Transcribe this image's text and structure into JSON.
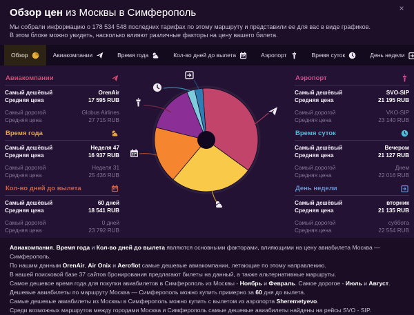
{
  "header": {
    "title_bold": "Обзор цен",
    "title_rest": " из Москвы в Симферополь",
    "subtitle_line1": "Мы собрали информацию о 178 534 548 последних тарифах по этому маршруту и представили ее для вас в виде графиков.",
    "subtitle_line2": "В этом блоке можно увидеть, насколько влияют различные факторы на цену вашего билета.",
    "close_label": "×"
  },
  "colors": {
    "background": "#1d0f28",
    "content_background": "#231233",
    "active_tab_accent": "#e8b13c"
  },
  "tabs": [
    {
      "key": "overview",
      "label": "Обзор",
      "icon": "coin",
      "icon_color": "#e8b13c",
      "active": true
    },
    {
      "key": "airlines",
      "label": "Авиакомпании",
      "icon": "plane",
      "icon_color": "#efeaf2",
      "active": false
    },
    {
      "key": "seasons",
      "label": "Время года",
      "icon": "season",
      "icon_color": "#efeaf2",
      "active": false
    },
    {
      "key": "days-before",
      "label": "Кол-во дней до вылета",
      "icon": "calendar",
      "icon_color": "#efeaf2",
      "active": false
    },
    {
      "key": "airport",
      "label": "Аэропорт",
      "icon": "tower",
      "icon_color": "#efeaf2",
      "active": false
    },
    {
      "key": "time-of-day",
      "label": "Время суток",
      "icon": "clock",
      "icon_color": "#efeaf2",
      "active": false
    },
    {
      "key": "weekday",
      "label": "День недели",
      "icon": "week",
      "icon_color": "#efeaf2",
      "active": false
    }
  ],
  "sections": {
    "left": [
      {
        "key": "airlines",
        "title": "Авиакомпании",
        "color": "#d44a72",
        "icon": "plane",
        "rows": [
          {
            "label": "Самый дешёвый",
            "value": "OrenAir",
            "dim": false
          },
          {
            "label": "Средняя цена",
            "value": "17 595 RUB",
            "dim": false
          },
          {
            "label": "Самый дорогой",
            "value": "Globus Airlines",
            "dim": true
          },
          {
            "label": "Средняя цена",
            "value": "27 715 RUB",
            "dim": true
          }
        ]
      },
      {
        "key": "seasons",
        "title": "Время года",
        "color": "#e8a33d",
        "icon": "season",
        "rows": [
          {
            "label": "Самый дешёвый",
            "value": "Неделя 47",
            "dim": false
          },
          {
            "label": "Средняя цена",
            "value": "16 937 RUB",
            "dim": false
          },
          {
            "label": "Самый дорогой",
            "value": "Неделя 31",
            "dim": true
          },
          {
            "label": "Средняя цена",
            "value": "25 436 RUB",
            "dim": true
          }
        ]
      },
      {
        "key": "days-before",
        "title": "Кол-во дней до вылета",
        "color": "#d95b37",
        "icon": "calendar",
        "rows": [
          {
            "label": "Самый дешёвый",
            "value": "60 дней",
            "dim": false
          },
          {
            "label": "Средняя цена",
            "value": "18 541 RUB",
            "dim": false
          },
          {
            "label": "Самый дорогой",
            "value": "0 дней",
            "dim": true
          },
          {
            "label": "Средняя цена",
            "value": "23 792 RUB",
            "dim": true
          }
        ]
      }
    ],
    "right": [
      {
        "key": "airport",
        "title": "Аэропорт",
        "color": "#d44a8c",
        "icon": "tower",
        "rows": [
          {
            "label": "Самый дешёвый",
            "value": "SVO-SIP",
            "dim": false
          },
          {
            "label": "Средняя цена",
            "value": "21 195 RUB",
            "dim": false
          },
          {
            "label": "Самый дорогой",
            "value": "VKO-SIP",
            "dim": true
          },
          {
            "label": "Средняя цена",
            "value": "23 140 RUB",
            "dim": true
          }
        ]
      },
      {
        "key": "time-of-day",
        "title": "Время суток",
        "color": "#4bbdd8",
        "icon": "clock",
        "rows": [
          {
            "label": "Самый дешёвый",
            "value": "Вечером",
            "dim": false
          },
          {
            "label": "Средняя цена",
            "value": "21 127 RUB",
            "dim": false
          },
          {
            "label": "Самый дорогой",
            "value": "Днем",
            "dim": true
          },
          {
            "label": "Средняя цена",
            "value": "22 016 RUB",
            "dim": true
          }
        ]
      },
      {
        "key": "weekday",
        "title": "День недели",
        "color": "#5f93d8",
        "icon": "week",
        "rows": [
          {
            "label": "Самый дешёвый",
            "value": "вторник",
            "dim": false
          },
          {
            "label": "Средняя цена",
            "value": "21 135 RUB",
            "dim": false
          },
          {
            "label": "Самый дорогой",
            "value": "суббота",
            "dim": true
          },
          {
            "label": "Средняя цена",
            "value": "22 554 RUB",
            "dim": true
          }
        ]
      }
    ]
  },
  "chart_data": {
    "type": "pie",
    "title": "",
    "start_angle_deg": -4,
    "hole_color": "#120721",
    "legend_position": "icon-callouts-around-slices",
    "slices": [
      {
        "key": "airlines",
        "label": "Авиакомпании",
        "percent": 36.1,
        "color": "#c2446b",
        "callout_color": "#a93a5c",
        "icon": "plane"
      },
      {
        "key": "seasons",
        "label": "Время года",
        "percent": 26.1,
        "color": "#f9c94a",
        "callout_color": "#c79a2e",
        "icon": "season"
      },
      {
        "key": "days-before",
        "label": "Кол-во дней до вылета",
        "percent": 17.8,
        "color": "#f5862f",
        "callout_color": "#a84526",
        "icon": "calendar"
      },
      {
        "key": "airport",
        "label": "Аэропорт",
        "percent": 15.0,
        "color": "#8b2f97",
        "callout_color": "#7c2146",
        "icon": "tower"
      },
      {
        "key": "time-of-day",
        "label": "Время суток",
        "percent": 2.5,
        "color": "#7ecbdd",
        "callout_color": "#2e8fae",
        "icon": "clock"
      },
      {
        "key": "weekday",
        "label": "День недели",
        "percent": 2.5,
        "color": "#2f7fb5",
        "callout_color": "#1d4f7c",
        "icon": "week"
      }
    ]
  },
  "footer_lines": [
    [
      {
        "t": "Авиакомпания",
        "b": true
      },
      {
        "t": ", ",
        "b": false
      },
      {
        "t": "Время года",
        "b": true
      },
      {
        "t": " и ",
        "b": false
      },
      {
        "t": "Кол-во дней до вылета",
        "b": true
      },
      {
        "t": " являются основными факторами, влияющими на цену авиабилета Москва — Симферополь.",
        "b": false
      }
    ],
    [
      {
        "t": "По нашим данным ",
        "b": false
      },
      {
        "t": "OrenAir",
        "b": true
      },
      {
        "t": ", ",
        "b": false
      },
      {
        "t": "Air Onix",
        "b": true
      },
      {
        "t": " и ",
        "b": false
      },
      {
        "t": "Aeroflot",
        "b": true
      },
      {
        "t": " самые дешевые авиакомпании, летающие по этому направлению.",
        "b": false
      }
    ],
    [
      {
        "t": "В нашей поисковой базе 37 сайтов бронирования предлагают билеты на данный, а также альтернативные маршруты.",
        "b": false
      }
    ],
    [
      {
        "t": "Самое дешевое время года для покупки авиабилетов в Симферополь из Москвы - ",
        "b": false
      },
      {
        "t": "Ноябрь",
        "b": true
      },
      {
        "t": " и ",
        "b": false
      },
      {
        "t": "Февраль",
        "b": true
      },
      {
        "t": ". Самое дорогое - ",
        "b": false
      },
      {
        "t": "Июль",
        "b": true
      },
      {
        "t": " и ",
        "b": false
      },
      {
        "t": "Август",
        "b": true
      },
      {
        "t": ".",
        "b": false
      }
    ],
    [
      {
        "t": "Дешевые авиабилеты по маршруту Москва — Симферополь можно купить примерно за ",
        "b": false
      },
      {
        "t": "60",
        "b": true
      },
      {
        "t": " дня до вылета.",
        "b": false
      }
    ],
    [
      {
        "t": "Самые дешевые авиабилеты из Москвы в Симферополь можно купить с вылетом из аэропорта ",
        "b": false
      },
      {
        "t": "Sheremetyevo",
        "b": true
      },
      {
        "t": ".",
        "b": false
      }
    ],
    [
      {
        "t": "Среди возможных маршрутов между городами Москва и Симферополь самые дешевые авиабилеты найдены на рейсы SVO - SIP.",
        "b": false
      }
    ]
  ]
}
